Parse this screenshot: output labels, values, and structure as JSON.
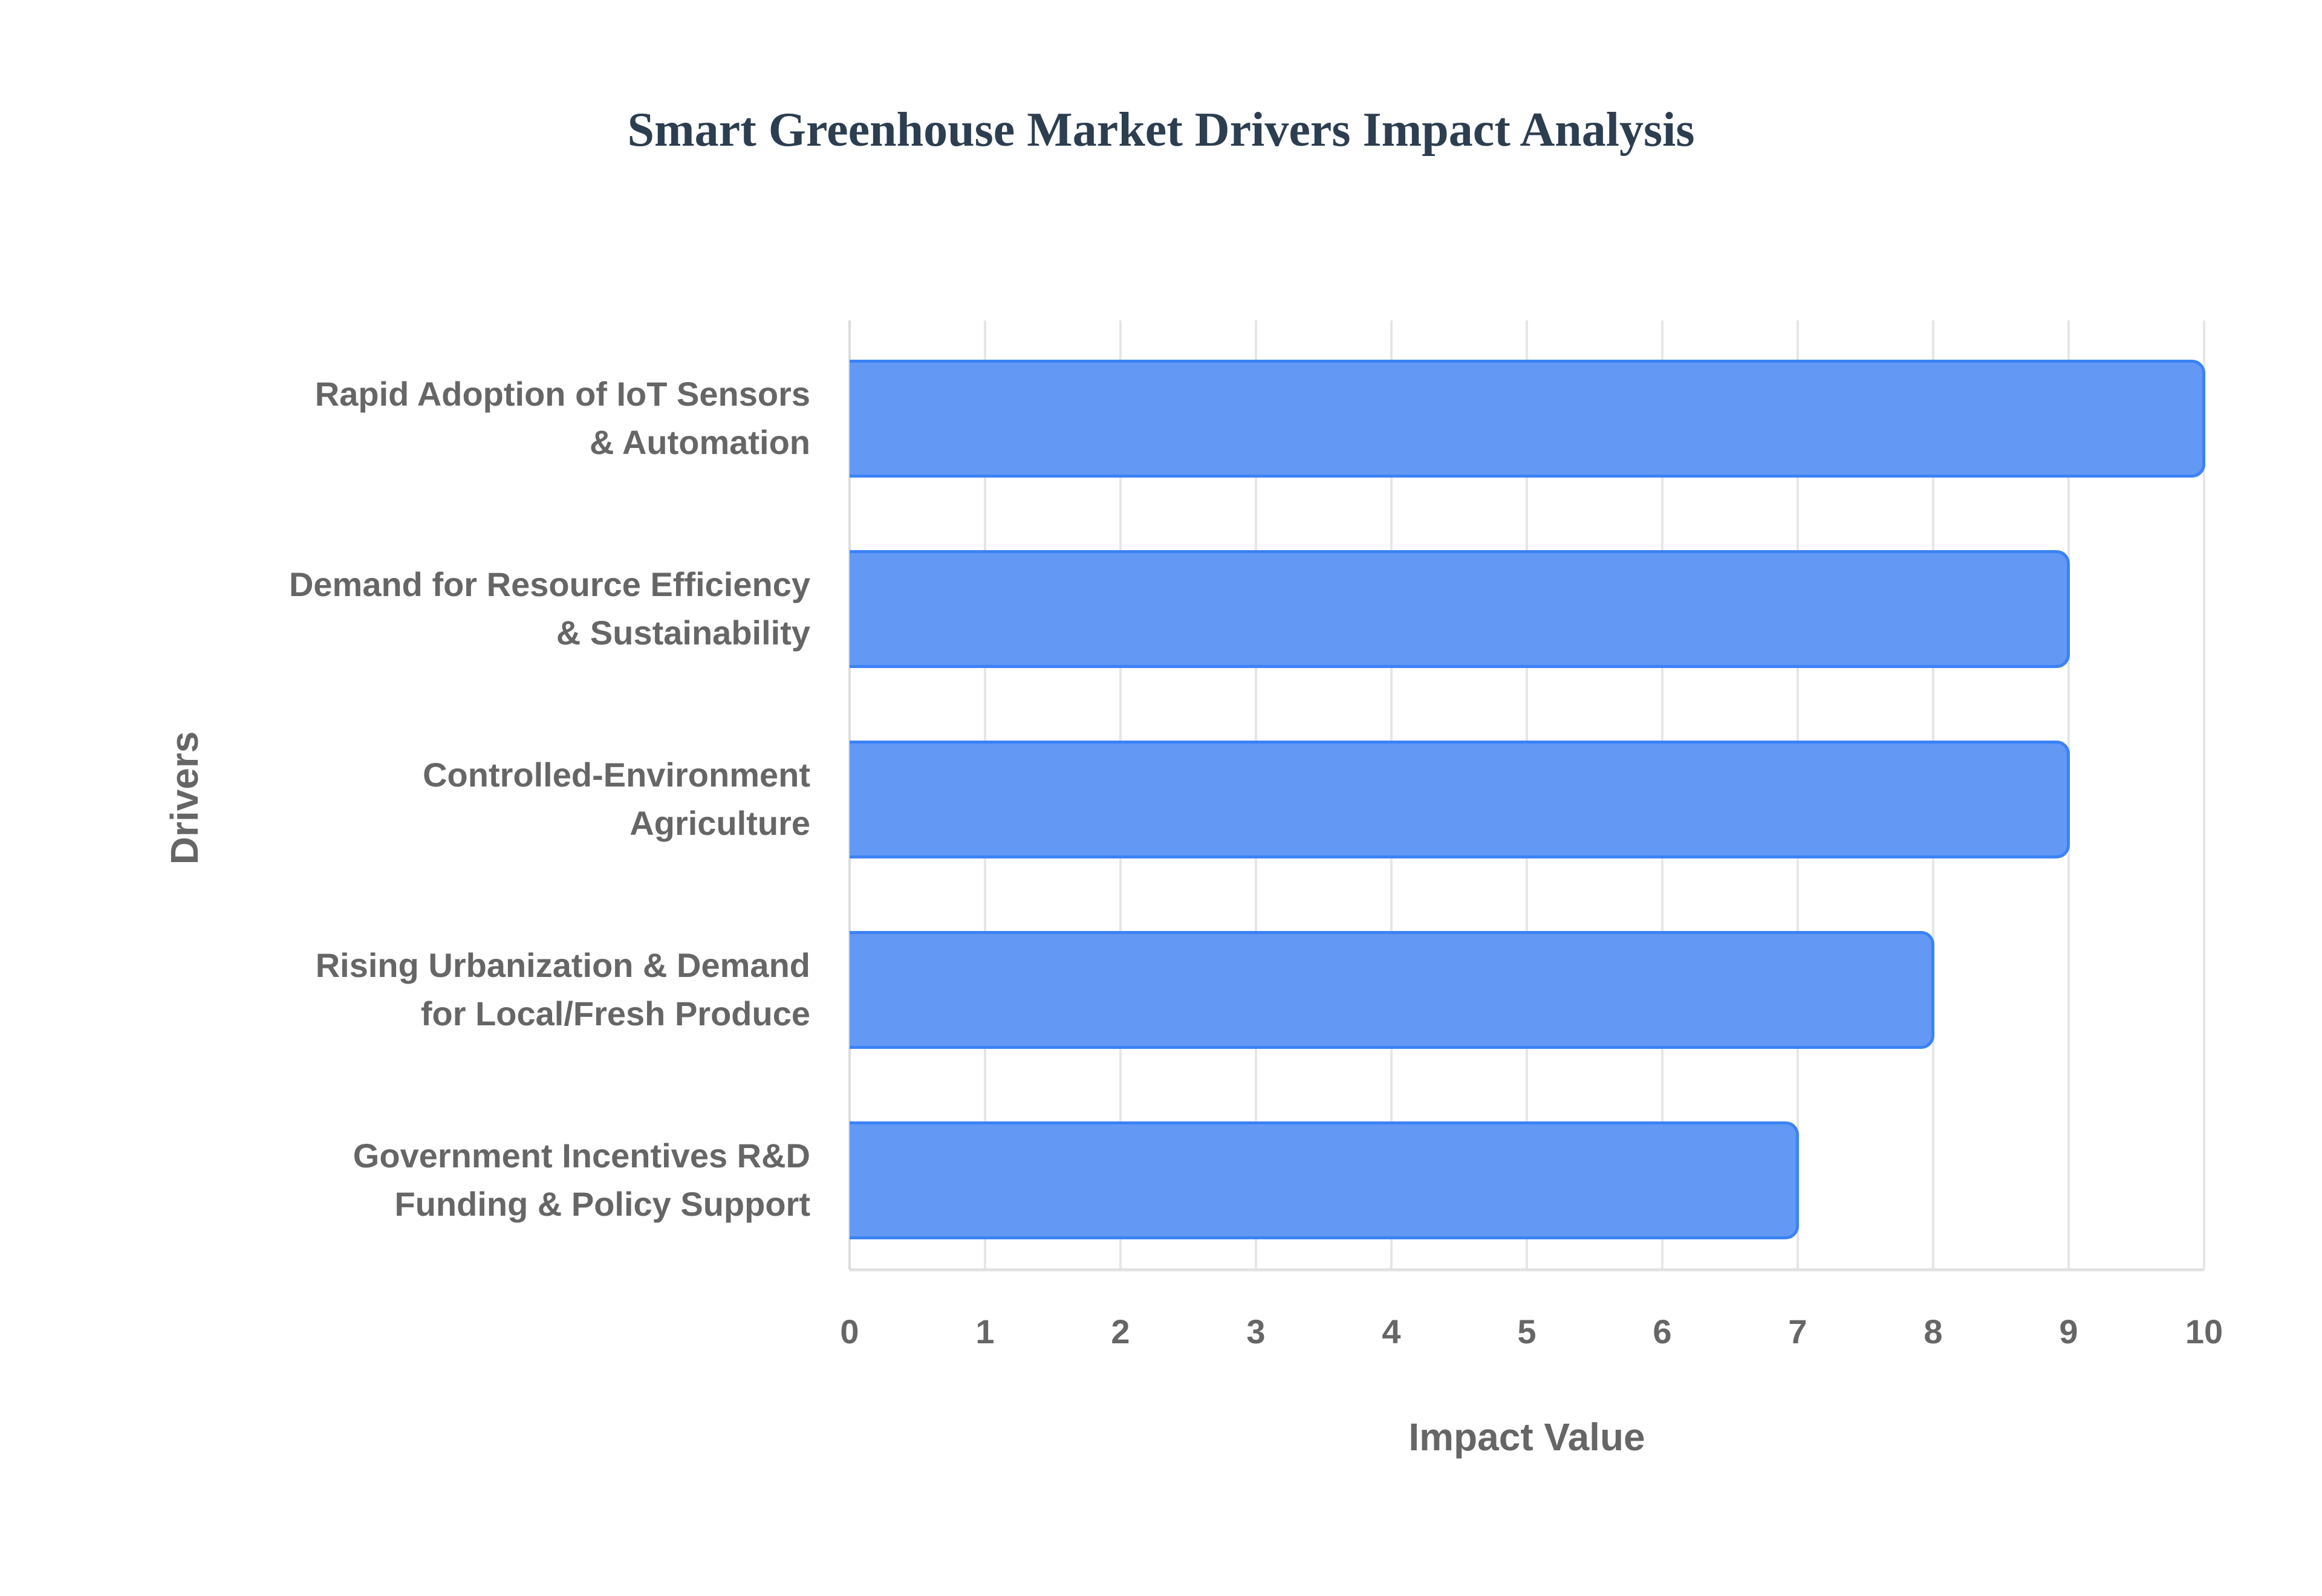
{
  "chart_data": {
    "type": "bar",
    "orientation": "horizontal",
    "title": "Smart Greenhouse Market Drivers Impact Analysis",
    "xlabel": "Impact Value",
    "ylabel": "Drivers",
    "xlim": [
      0,
      10
    ],
    "x_ticks": [
      "0",
      "1",
      "2",
      "3",
      "4",
      "5",
      "6",
      "7",
      "8",
      "9",
      "10"
    ],
    "grid": true,
    "legend": "none",
    "categories": [
      [
        "Rapid Adoption of IoT Sensors",
        "& Automation"
      ],
      [
        "Demand for Resource Efficiency",
        "& Sustainability"
      ],
      [
        "Controlled-Environment",
        "Agriculture"
      ],
      [
        "Rising Urbanization & Demand",
        "for Local/Fresh Produce"
      ],
      [
        "Government Incentives R&D",
        "Funding & Policy Support"
      ]
    ],
    "values": [
      10,
      9,
      9,
      8,
      7
    ],
    "colors": {
      "bar_fill": "#6399f5",
      "bar_border": "#3b82f6",
      "title": "#2c3e50",
      "text": "#666666",
      "grid": "#e6e6e6"
    }
  }
}
